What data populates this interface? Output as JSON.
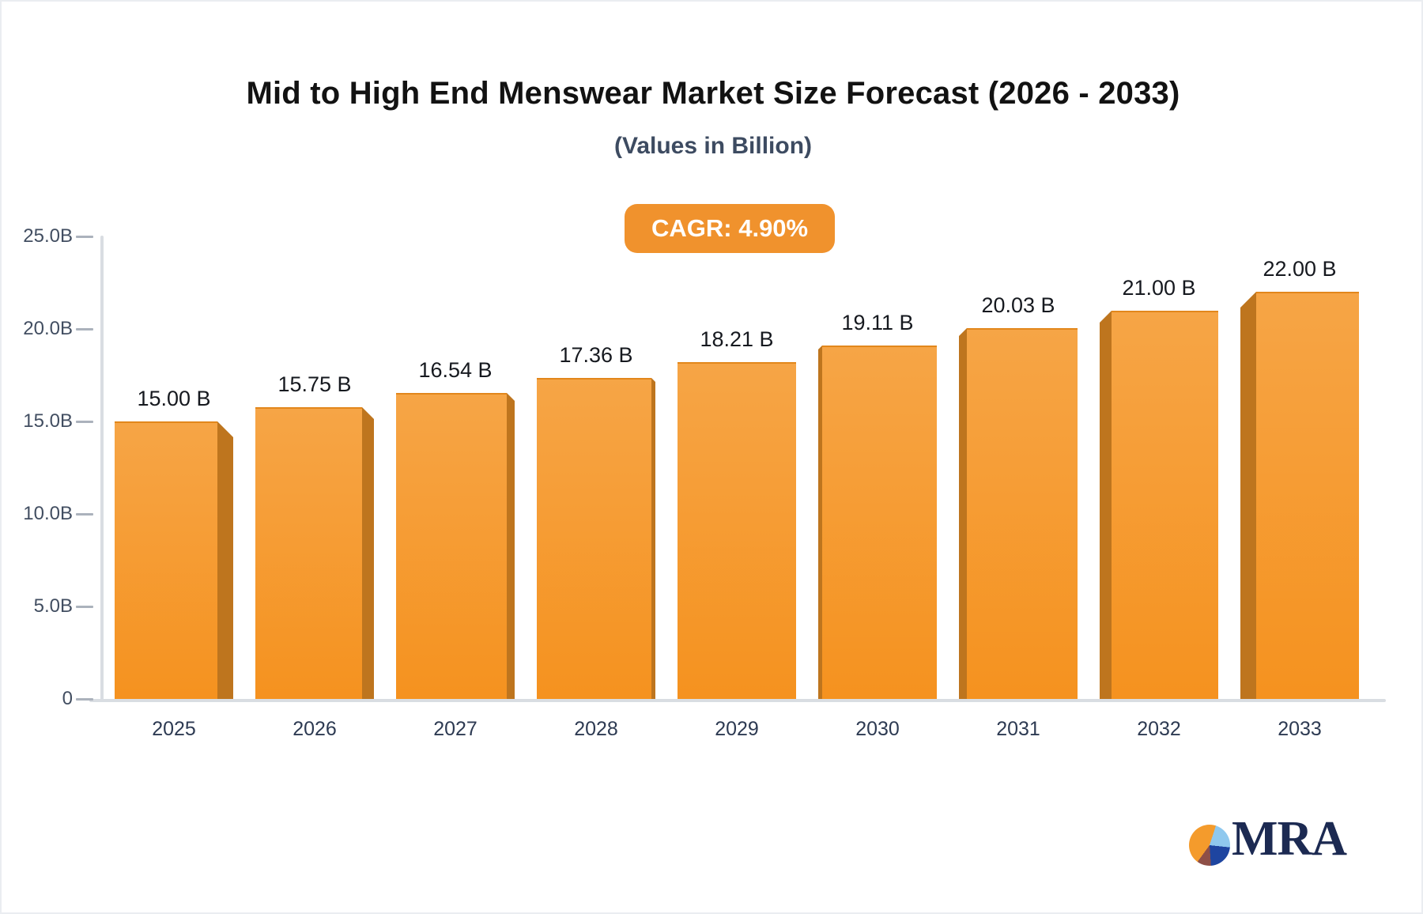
{
  "chart_data": {
    "type": "bar",
    "title": "Mid to High End Menswear Market Size Forecast (2026 - 2033)",
    "subtitle": "(Values in Billion)",
    "cagr_label": "CAGR: 4.90%",
    "categories": [
      "2025",
      "2026",
      "2027",
      "2028",
      "2029",
      "2030",
      "2031",
      "2032",
      "2033"
    ],
    "values": [
      15.0,
      15.75,
      16.54,
      17.36,
      18.21,
      19.11,
      20.03,
      21.0,
      22.0
    ],
    "data_labels": [
      "15.00 B",
      "15.75 B",
      "16.54 B",
      "17.36 B",
      "18.21 B",
      "19.11 B",
      "20.03 B",
      "21.00 B",
      "22.00 B"
    ],
    "y_ticks": [
      {
        "value": 25,
        "label": "25.0B"
      },
      {
        "value": 20,
        "label": "20.0B"
      },
      {
        "value": 15,
        "label": "15.0B"
      },
      {
        "value": 10,
        "label": "10.0B"
      },
      {
        "value": 5,
        "label": "5.0B"
      },
      {
        "value": 0,
        "label": "0"
      }
    ],
    "ylim": [
      0,
      25
    ],
    "xlabel": "",
    "ylabel": "",
    "grid": false,
    "legend": null,
    "bar_style": "3d-perspective",
    "colors": {
      "bar_face_top": "#F6A546",
      "bar_face_bottom": "#F5921F",
      "bar_side": "#BE751E",
      "badge_bg": "#F0922D",
      "badge_text": "#FFFFFF",
      "axis_line": "#D9DDE2",
      "tick_dash": "#ABB2BC",
      "tick_label": "#424E61",
      "year_label": "#2D3A52",
      "value_label": "#16191F",
      "title": "#121212",
      "subtitle": "#3D4B61",
      "logo_navy": "#1C2A52",
      "logo_orange": "#F49B2C",
      "logo_lightblue": "#8FC8EE",
      "logo_blue": "#1E45A0",
      "logo_maroon": "#8E4F47"
    }
  },
  "logo": {
    "text": "MRA"
  }
}
